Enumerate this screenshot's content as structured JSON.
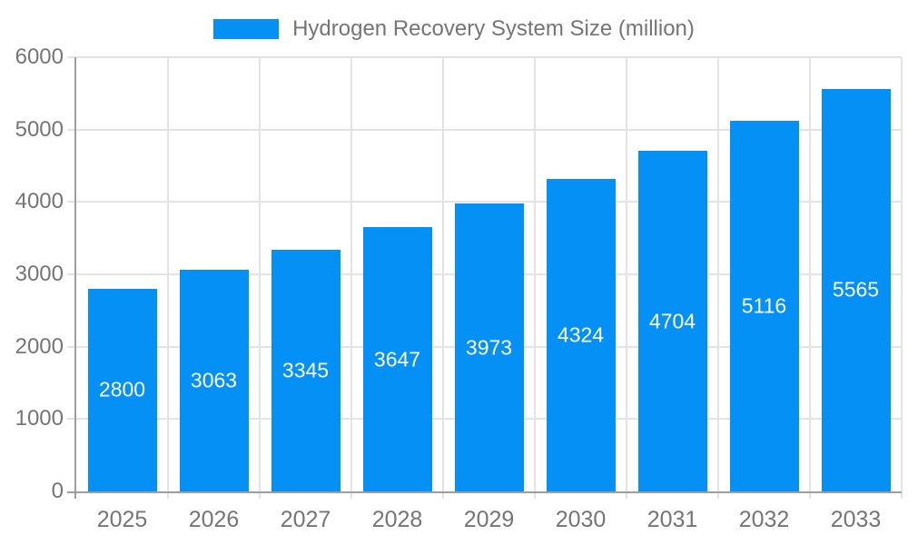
{
  "legend": {
    "label": "Hydrogen Recovery System Size (million)"
  },
  "colors": {
    "bar_fill": "#0590f5",
    "value_label_text": "#ffffff",
    "axis_text": "#757575",
    "axis_line": "#9e9e9e",
    "grid_line": "#e3e3e3",
    "background": "#ffffff"
  },
  "chart_data": {
    "type": "bar",
    "title": "Hydrogen Recovery System Size (million)",
    "series_name": "Hydrogen Recovery System Size (million)",
    "categories": [
      "2025",
      "2026",
      "2027",
      "2028",
      "2029",
      "2030",
      "2031",
      "2032",
      "2033"
    ],
    "values": [
      2800,
      3063,
      3345,
      3647,
      3973,
      4324,
      4704,
      5116,
      5565
    ],
    "xlabel": "",
    "ylabel": "",
    "ylim": [
      0,
      6000
    ],
    "yticks": [
      0,
      1000,
      2000,
      3000,
      4000,
      5000,
      6000
    ],
    "grid": true,
    "legend_position": "top-center",
    "value_labels": "inside-center-white"
  }
}
